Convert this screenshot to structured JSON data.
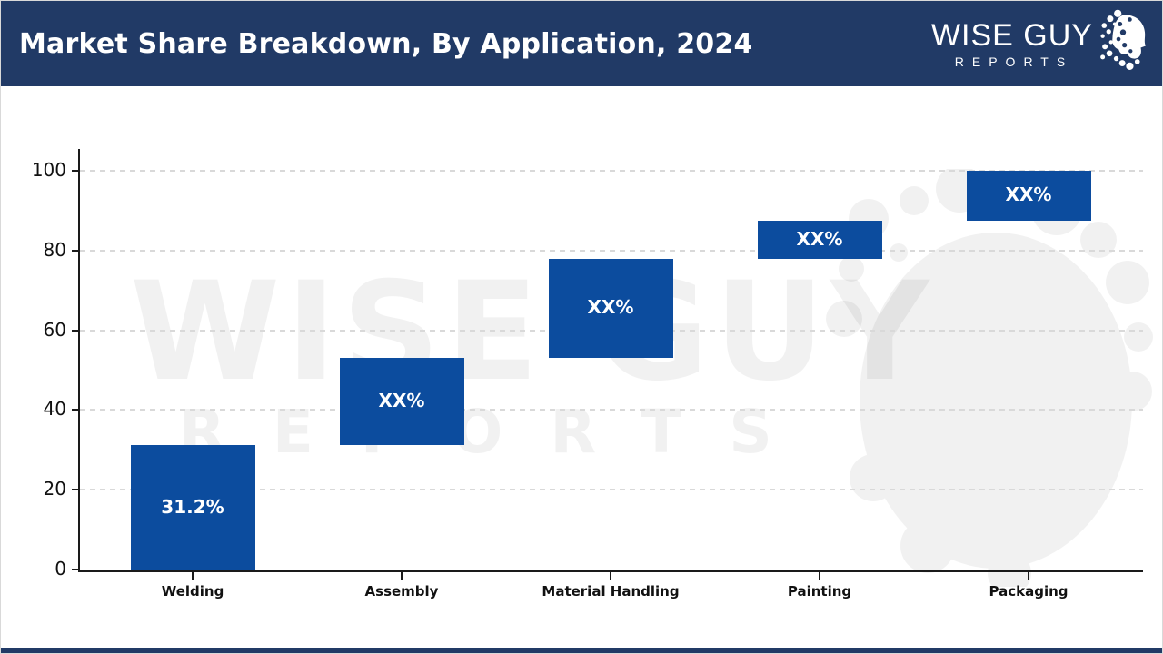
{
  "header": {
    "title": "Market Share Breakdown, By Application, 2024",
    "background": "#213A66",
    "logo": {
      "name": "WISE GUY",
      "sub": "REPORTS"
    }
  },
  "watermark": {
    "line1": "WISE GUY",
    "line2": "REPORTS"
  },
  "footer": {
    "background": "#213A66"
  },
  "chart_data": {
    "type": "bar",
    "variant": "waterfall",
    "title": "Market Share Breakdown, By Application, 2024",
    "categories": [
      "Welding",
      "Assembly",
      "Material Handling",
      "Painting",
      "Packaging"
    ],
    "segments": [
      [
        0,
        31.2
      ],
      [
        31.2,
        53.0
      ],
      [
        53.0,
        78.0
      ],
      [
        78.0,
        87.5
      ],
      [
        87.5,
        100.0
      ]
    ],
    "approx_values": [
      31.2,
      21.8,
      25.0,
      9.5,
      12.5
    ],
    "bar_labels": [
      "31.2%",
      "XX%",
      "XX%",
      "XX%",
      "XX%"
    ],
    "yticks": [
      0,
      20,
      40,
      60,
      80,
      100
    ],
    "ylim": [
      0,
      105.5
    ],
    "xlabel": "",
    "ylabel": "",
    "grid": true,
    "grid_style": "dashed",
    "legend": false,
    "bar_color": "#0C4C9E",
    "bar_label_color": "#FFFFFF",
    "axis_color": "#1A1A1A",
    "grid_color": "#D9D9D9"
  }
}
